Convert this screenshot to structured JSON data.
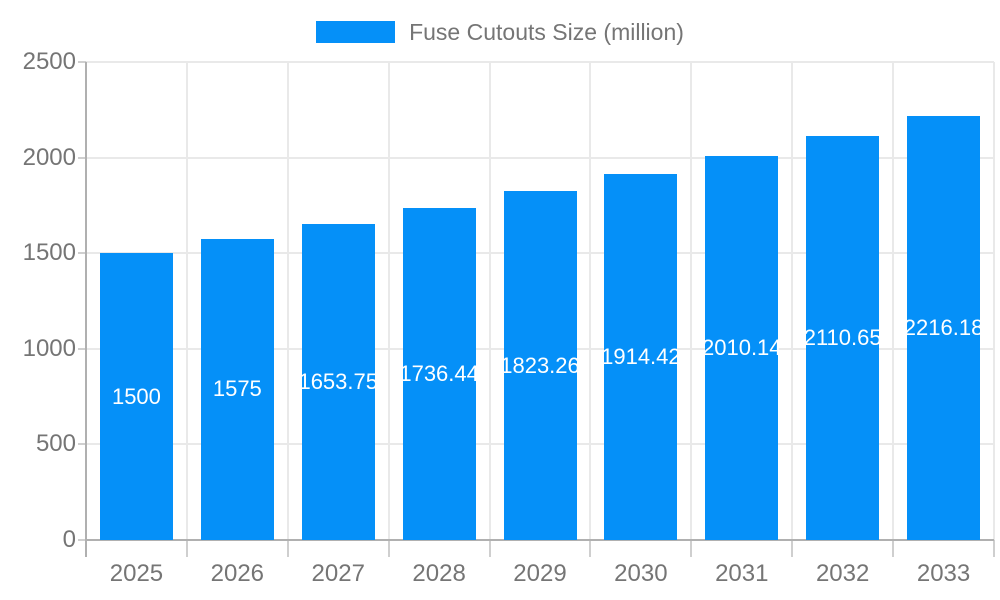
{
  "legend": {
    "label": "Fuse Cutouts Size (million)"
  },
  "colors": {
    "bar": "#0590f8",
    "grid": "#e9e9e9",
    "axis": "#b0b0b0",
    "tick": "#cfcfcf",
    "axis_text": "#757575",
    "bar_label_text": "#ffffff",
    "background": "#ffffff"
  },
  "chart_data": {
    "type": "bar",
    "title": "Fuse Cutouts Size (million)",
    "categories": [
      "2025",
      "2026",
      "2027",
      "2028",
      "2029",
      "2030",
      "2031",
      "2032",
      "2033"
    ],
    "values": [
      1500,
      1575,
      1653.75,
      1736.44,
      1823.26,
      1914.42,
      2010.14,
      2110.65,
      2216.18
    ],
    "value_labels": [
      "1500",
      "1575",
      "1653.75",
      "1736.44",
      "1823.26",
      "1914.42",
      "2010.14",
      "2110.65",
      "2216.18"
    ],
    "xlabel": "",
    "ylabel": "",
    "ylim": [
      0,
      2500
    ],
    "yticks": [
      0,
      500,
      1000,
      1500,
      2000,
      2500
    ],
    "grid": true,
    "legend_position": "top"
  }
}
